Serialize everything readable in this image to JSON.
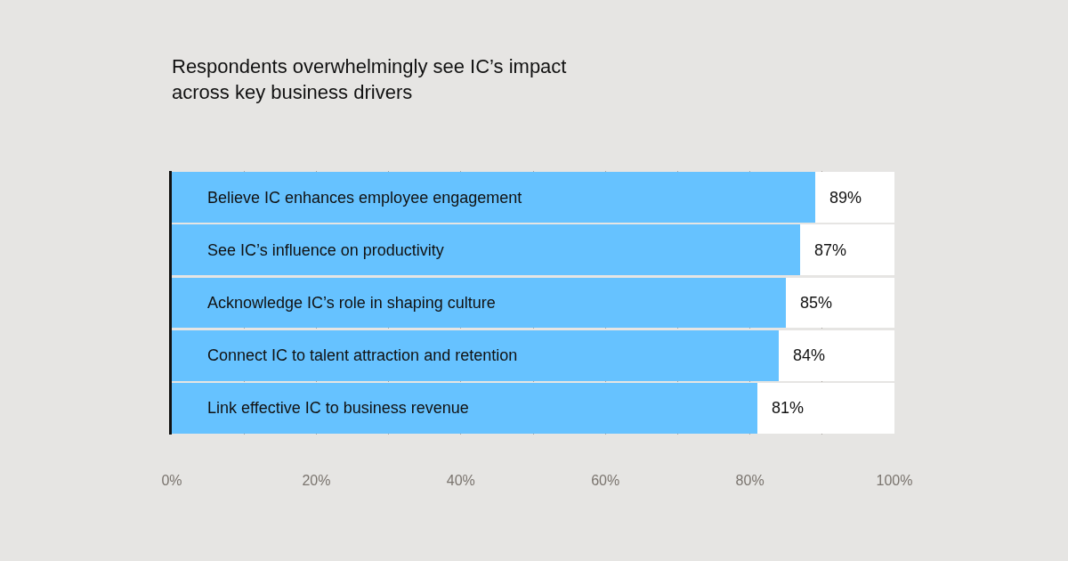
{
  "chart_data": {
    "type": "bar",
    "orientation": "horizontal",
    "stacked": true,
    "title": "Respondents overwhelmingly see IC’s impact\nacross key business drivers",
    "categories": [
      "Believe IC enhances employee engagement",
      "See IC’s influence on productivity",
      "Acknowledge IC’s role in shaping culture",
      "Connect IC to talent attraction and retention",
      "Link effective IC to business revenue"
    ],
    "series": [
      {
        "color": "#66c2ff",
        "values": [
          89,
          87,
          85,
          84,
          81
        ],
        "value_labels": [
          "89%",
          "87%",
          "85%",
          "84%",
          "81%"
        ]
      },
      {
        "color": "#ffffff",
        "values": [
          11,
          13,
          15,
          16,
          19
        ]
      }
    ],
    "xlim": [
      0,
      100
    ],
    "xticks": [
      {
        "value": 0,
        "label": "0%"
      },
      {
        "value": 10,
        "label": null
      },
      {
        "value": 20,
        "label": "20%"
      },
      {
        "value": 30,
        "label": null
      },
      {
        "value": 40,
        "label": "40%"
      },
      {
        "value": 50,
        "label": null
      },
      {
        "value": 60,
        "label": "60%"
      },
      {
        "value": 70,
        "label": null
      },
      {
        "value": 80,
        "label": "80%"
      },
      {
        "value": 90,
        "label": null
      },
      {
        "value": 100,
        "label": "100%"
      }
    ],
    "grid": "x"
  }
}
